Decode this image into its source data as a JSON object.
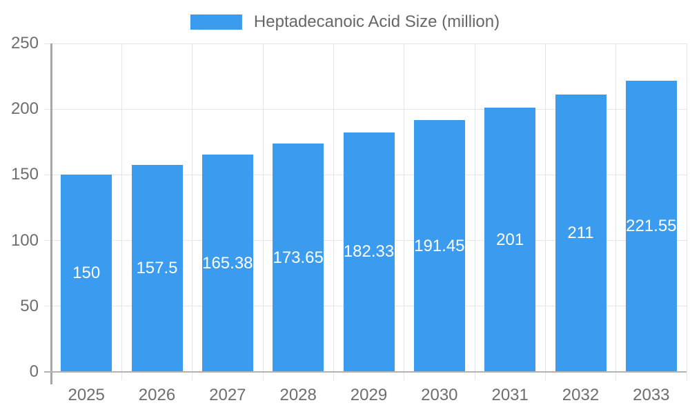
{
  "legend": {
    "label": "Heptadecanoic Acid Size (million)"
  },
  "colors": {
    "bar": "#3b9bef",
    "grid": "#e5e5e5",
    "axis": "#a6a6a6",
    "bottom_axis": "#b3b3b3",
    "tick_label": "#6e6e6e",
    "legend_label": "#676767",
    "bar_label": "#ffffff",
    "background": "#ffffff"
  },
  "chart_data": {
    "type": "bar",
    "title": "",
    "legend_entries": [
      "Heptadecanoic Acid Size (million)"
    ],
    "legend_position": "top",
    "categories": [
      "2025",
      "2026",
      "2027",
      "2028",
      "2029",
      "2030",
      "2031",
      "2032",
      "2033"
    ],
    "values": [
      150,
      157.5,
      165.38,
      173.65,
      182.33,
      191.45,
      201,
      211,
      221.55
    ],
    "data_labels": [
      "150",
      "157.5",
      "165.38",
      "173.65",
      "182.33",
      "191.45",
      "201",
      "211",
      "221.55"
    ],
    "xlabel": "",
    "ylabel": "",
    "ylim": [
      0,
      250
    ],
    "yticks": [
      0,
      50,
      100,
      150,
      200,
      250
    ],
    "ytick_labels": [
      "0",
      "50",
      "100",
      "150",
      "200",
      "250"
    ],
    "grid": true
  }
}
